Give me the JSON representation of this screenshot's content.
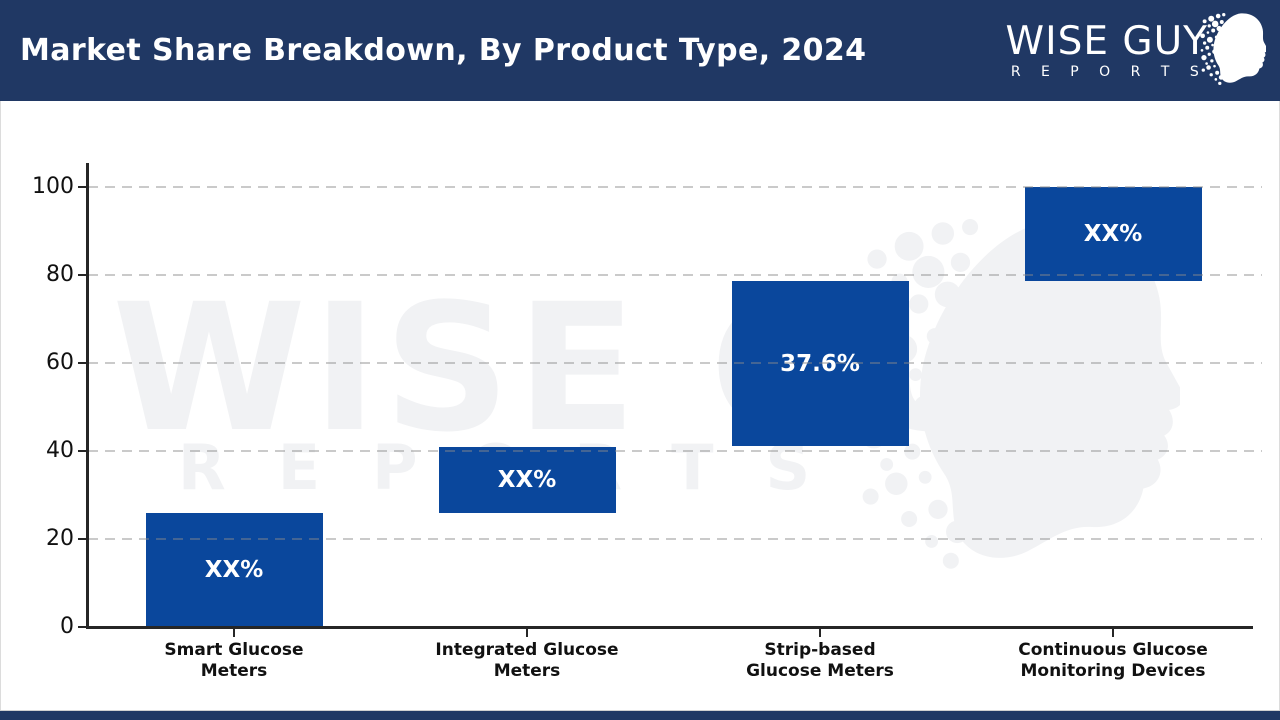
{
  "header": {
    "title": "Market Share Breakdown, By Product Type, 2024",
    "logo": {
      "wise_guy": "WISE GUY",
      "reports": "R E P O R T S"
    }
  },
  "watermark": {
    "wise_gu": "WISE GU",
    "reports": "REPORTS"
  },
  "chart_data": {
    "type": "bar",
    "subtype": "floating-waterfall-percent",
    "title": "Market Share Breakdown, By Product Type, 2024",
    "categories": [
      "Smart Glucose Meters",
      "Integrated Glucose Meters",
      "Strip-based Glucose Meters",
      "Continuous Glucose Monitoring Devices"
    ],
    "bars": [
      {
        "category": "Smart Glucose Meters",
        "lines": [
          "Smart Glucose",
          "Meters"
        ],
        "from": 0,
        "to": 26,
        "label": "XX%"
      },
      {
        "category": "Integrated Glucose Meters",
        "lines": [
          "Integrated Glucose",
          "Meters"
        ],
        "from": 26,
        "to": 41,
        "label": "XX%"
      },
      {
        "category": "Strip-based Glucose Meters",
        "lines": [
          "Strip-based",
          "Glucose Meters"
        ],
        "from": 41,
        "to": 78.6,
        "label": "37.6%"
      },
      {
        "category": "Continuous Glucose Monitoring Devices",
        "lines": [
          "Continuous Glucose",
          "Monitoring Devices"
        ],
        "from": 78.6,
        "to": 100,
        "label": "XX%"
      }
    ],
    "yticks": [
      0,
      20,
      40,
      60,
      80,
      100
    ],
    "ylim": [
      0,
      105
    ],
    "grid": "horizontal-dashed",
    "legend": "none"
  },
  "colors": {
    "header_bg": "#203864",
    "footer_bg": "#203864",
    "bar": "#0a479c",
    "bar_label": "#ffffff",
    "axis": "#262626",
    "watermark": "#f1f2f4"
  }
}
